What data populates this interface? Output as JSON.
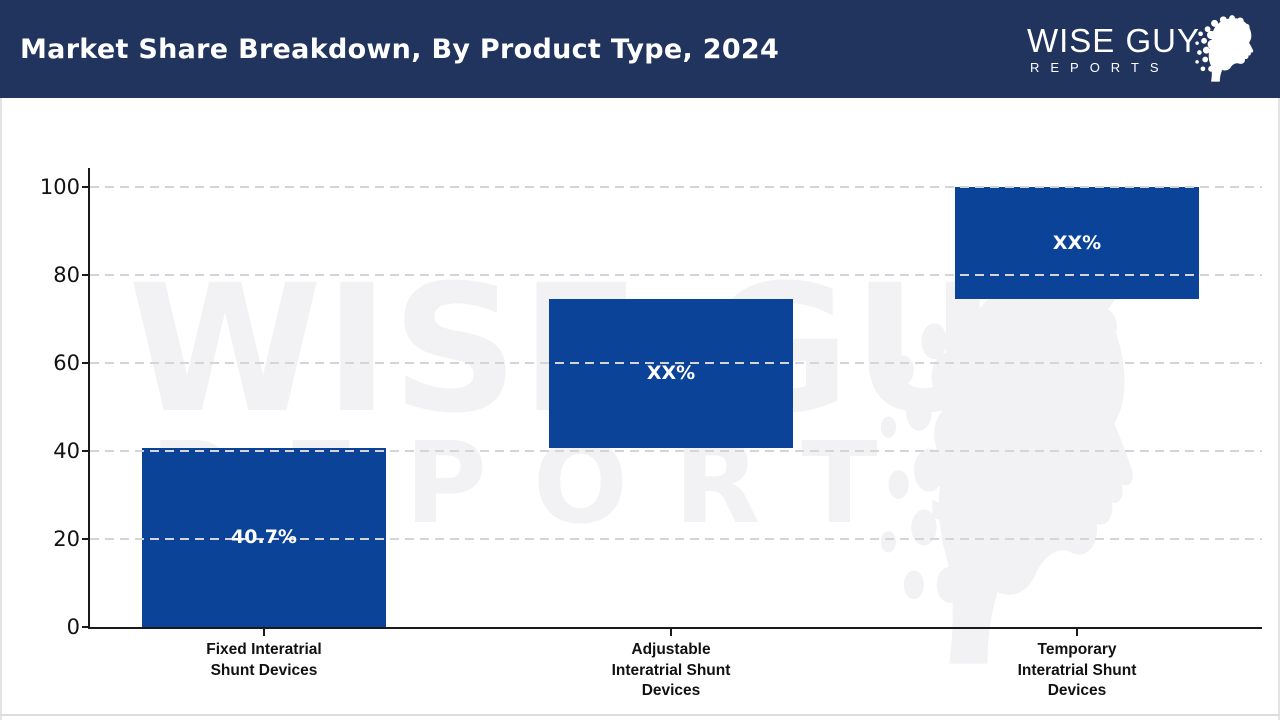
{
  "header": {
    "title": "Market Share Breakdown, By Product Type, 2024",
    "logo": {
      "line1": "WISE GUY",
      "line2": "REPORTS",
      "icon": "dotted-head-profile-icon"
    }
  },
  "watermark": {
    "line1": "WISE GUY",
    "line2": "REPORTS"
  },
  "colors": {
    "header_bg": "#20345e",
    "bar": "#0a4397",
    "grid": "#d5d5d5",
    "axis": "#1a1a1a",
    "watermark": "#f2f2f4"
  },
  "chart_data": {
    "type": "bar",
    "subtype": "stacked-waterfall",
    "title": "Market Share Breakdown, By Product Type, 2024",
    "categories": [
      "Fixed Interatrial Shunt Devices",
      "Adjustable Interatrial Shunt Devices",
      "Temporary Interatrial Shunt Devices"
    ],
    "category_label_lines": [
      [
        "Fixed Interatrial",
        "Shunt Devices"
      ],
      [
        "Adjustable",
        "Interatrial Shunt",
        "Devices"
      ],
      [
        "Temporary",
        "Interatrial Shunt",
        "Devices"
      ]
    ],
    "series": [
      {
        "name": "Market share (%)",
        "segments": [
          {
            "category": "Fixed Interatrial Shunt Devices",
            "start": 0,
            "end": 40.7,
            "label": "40.7%"
          },
          {
            "category": "Adjustable Interatrial Shunt Devices",
            "start": 40.7,
            "end": 74.5,
            "label": "XX%"
          },
          {
            "category": "Temporary Interatrial Shunt Devices",
            "start": 74.5,
            "end": 100,
            "label": "XX%"
          }
        ]
      }
    ],
    "xlabel": "",
    "ylabel": "",
    "yticks": [
      0,
      20,
      40,
      60,
      80,
      100
    ],
    "ylim": [
      0,
      104
    ],
    "grid": "horizontal-dashed-above-bars",
    "legend": "none",
    "bar_color": "#0a4397"
  }
}
